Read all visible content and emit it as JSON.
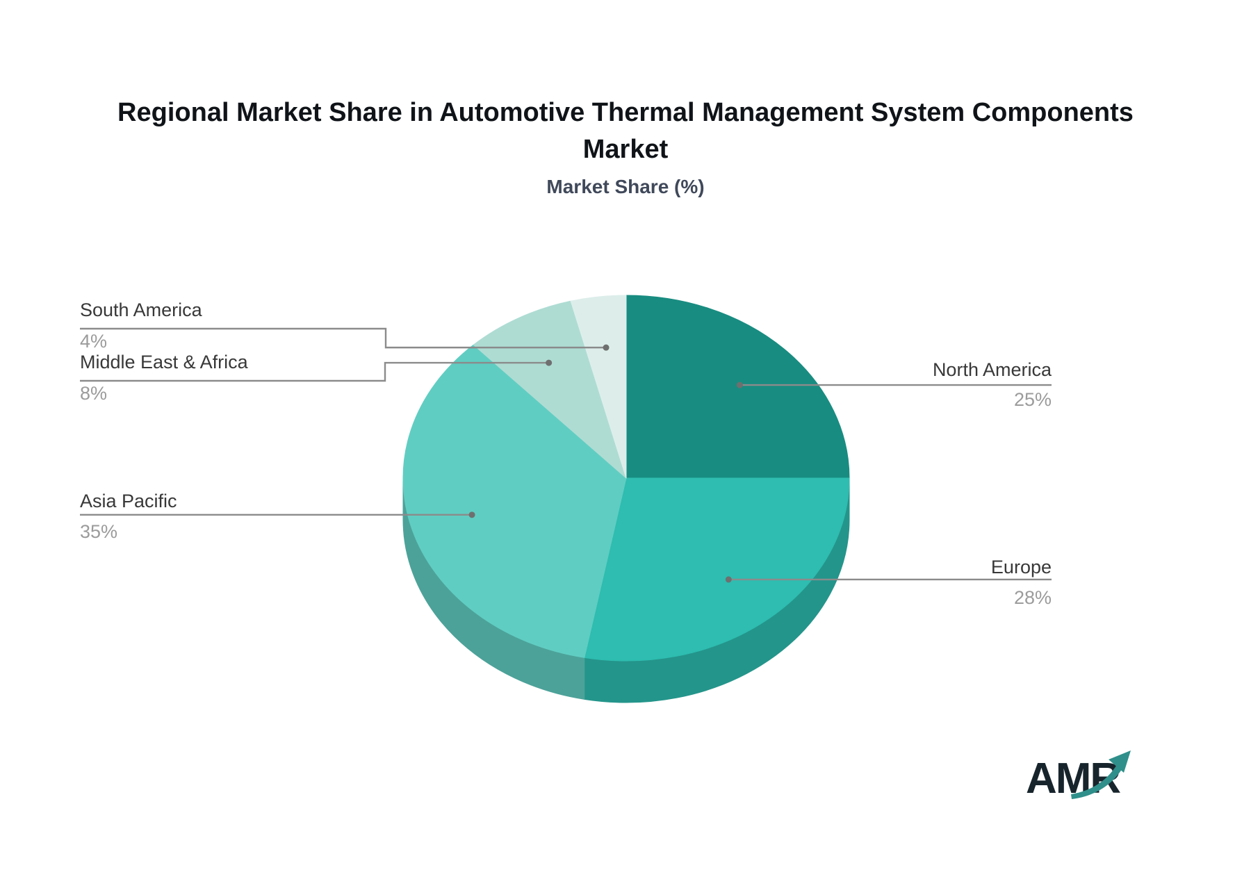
{
  "header": {
    "title_line1": "Regional Market Share in Automotive Thermal Management System Components",
    "title_line2": "Market",
    "subtitle": "Market Share (%)"
  },
  "chart_data": {
    "type": "pie",
    "title": "Regional Market Share in Automotive Thermal Management System Components Market",
    "subtitle": "Market Share (%)",
    "unit": "%",
    "effect": "3d",
    "start_angle_deg": 0,
    "clockwise": true,
    "slices": [
      {
        "label": "North America",
        "value": 25,
        "display": "25%",
        "color": "#198c81",
        "label_side": "right"
      },
      {
        "label": "Europe",
        "value": 28,
        "display": "28%",
        "color": "#2ebdb0",
        "label_side": "right"
      },
      {
        "label": "Asia Pacific",
        "value": 35,
        "display": "35%",
        "color": "#60cdc2",
        "label_side": "left"
      },
      {
        "label": "Middle East & Africa",
        "value": 8,
        "display": "8%",
        "color": "#aedcd3",
        "label_side": "left"
      },
      {
        "label": "South America",
        "value": 4,
        "display": "4%",
        "color": "#ddeeea",
        "label_side": "left"
      }
    ],
    "leader_line_color": "#8b8b8b",
    "leader_dot_color": "#6f6f6f"
  },
  "logo": {
    "text": "AMR",
    "accent_color": "#2f8f8a"
  }
}
